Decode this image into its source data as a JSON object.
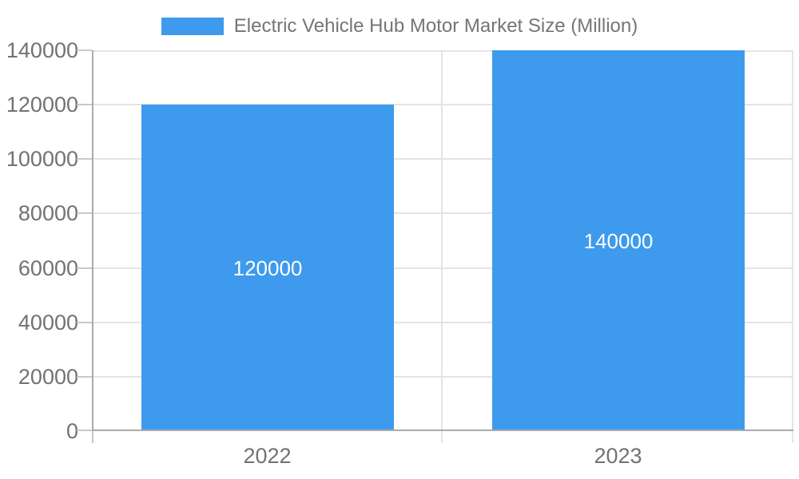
{
  "chart_data": {
    "type": "bar",
    "title": "Electric Vehicle Hub Motor Market Size (Million)",
    "legend": {
      "position": "top",
      "label": "Electric Vehicle Hub Motor Market Size (Million)"
    },
    "categories": [
      "2022",
      "2023"
    ],
    "values": [
      120000,
      140000
    ],
    "bar_value_labels": [
      "120000",
      "140000"
    ],
    "y_axis": {
      "min": 0,
      "max": 140000,
      "tick_step": 20000,
      "tick_labels": [
        "0",
        "20000",
        "40000",
        "60000",
        "80000",
        "100000",
        "120000",
        "140000"
      ]
    },
    "grid": true,
    "legend_position": "top",
    "colors": {
      "series": "#3E9AEC",
      "bar_label_text": "#FFFFFF",
      "legend_text": "#757575",
      "axis_text": "#727272",
      "axis_line": "#ABABAB",
      "axis_tail": "#C6C6C6",
      "grid_line": "#E4E4E4",
      "tick_line": "#C9C9C9",
      "background": "#FFFFFF"
    }
  }
}
